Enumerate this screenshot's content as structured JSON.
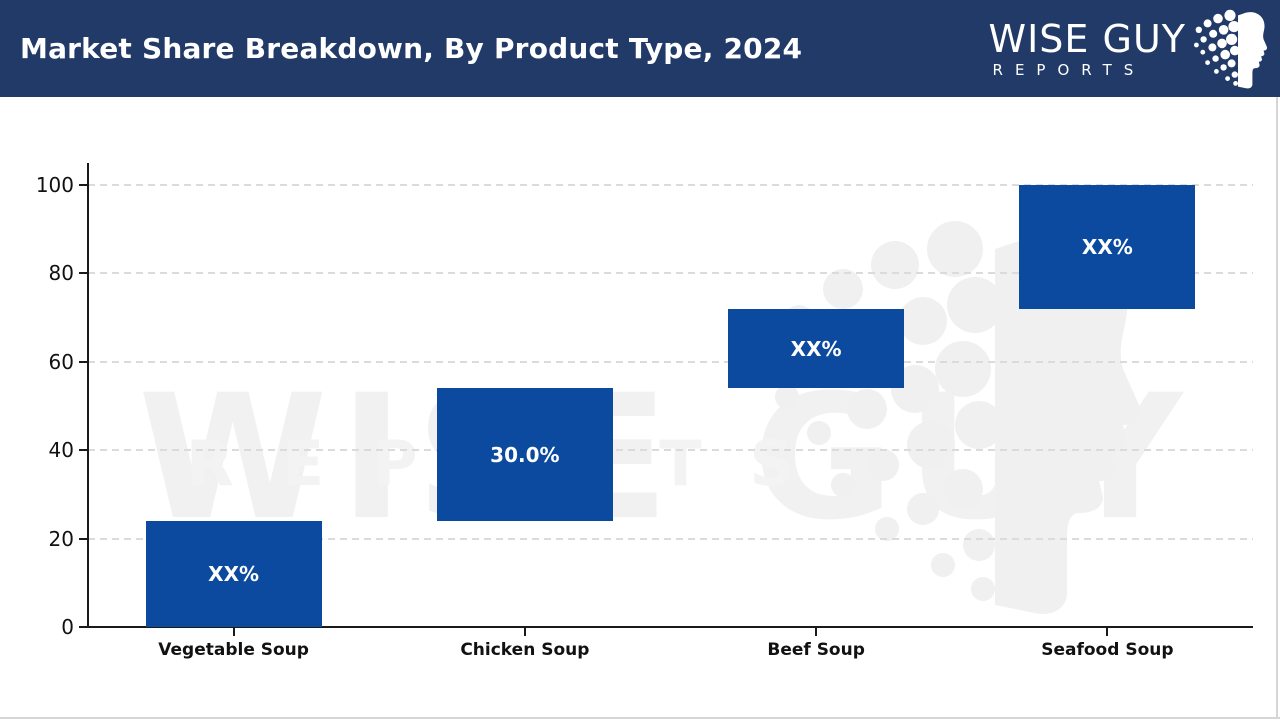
{
  "header": {
    "title": "Market Share Breakdown, By Product Type, 2024",
    "logo": {
      "line1": "WISE GUY",
      "line2": "REPORTS"
    }
  },
  "watermark": {
    "line1": "WISE GUY",
    "line2": "REPORTS"
  },
  "colors": {
    "header_bg": "#213A68",
    "bar": "#0B4A9E",
    "axis": "#1A1A1A",
    "gridline": "#DBDBDB",
    "bar_label": "#FFFFFF",
    "watermark": "#F1F1F1",
    "edge_hairline": "#D6D6D6"
  },
  "chart_data": {
    "type": "bar",
    "subtype": "waterfall-floating-bars",
    "title": "Market Share Breakdown, By Product Type, 2024",
    "categories": [
      "Vegetable Soup",
      "Chicken Soup",
      "Beef Soup",
      "Seafood Soup"
    ],
    "segments": [
      {
        "start": 0,
        "end": 24
      },
      {
        "start": 24,
        "end": 54
      },
      {
        "start": 54,
        "end": 72
      },
      {
        "start": 72,
        "end": 100
      }
    ],
    "bar_labels": [
      "XX%",
      "30.0%",
      "XX%",
      "XX%"
    ],
    "yticks": [
      0,
      20,
      40,
      60,
      80,
      100
    ],
    "ylim": [
      0,
      105
    ],
    "xlabel": "",
    "ylabel": "",
    "grid": "horizontal-dashed",
    "legend": "none"
  }
}
